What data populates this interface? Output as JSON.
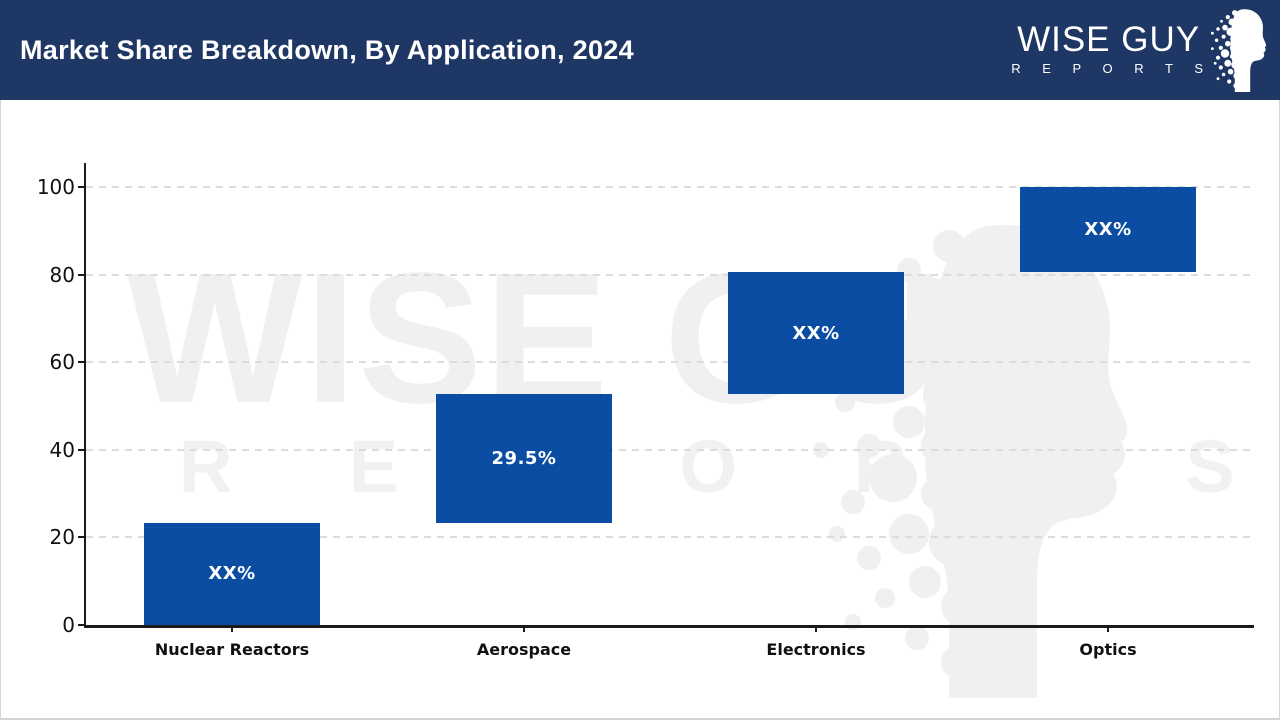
{
  "header": {
    "title": "Market Share Breakdown, By Application, 2024",
    "bg_color": "#1F3765",
    "logo": {
      "line1": "WISE GUY",
      "line2": "R E P O R T S"
    }
  },
  "watermark": {
    "line1": "WISE GUY",
    "line2": "R E P O R T S"
  },
  "chart_data": {
    "type": "bar",
    "subtype": "waterfall",
    "title": "Market Share Breakdown, By Application, 2024",
    "xlabel": "",
    "ylabel": "",
    "categories": [
      "Nuclear Reactors",
      "Aerospace",
      "Electronics",
      "Optics"
    ],
    "segments": [
      {
        "category": "Nuclear Reactors",
        "start": 0,
        "end": 23.3,
        "label": "XX%"
      },
      {
        "category": "Aerospace",
        "start": 23.3,
        "end": 52.8,
        "label": "29.5%"
      },
      {
        "category": "Electronics",
        "start": 52.8,
        "end": 80.5,
        "label": "XX%"
      },
      {
        "category": "Optics",
        "start": 80.5,
        "end": 100,
        "label": "XX%"
      }
    ],
    "yticks": [
      0,
      20,
      40,
      60,
      80,
      100
    ],
    "ylim": [
      0,
      105
    ],
    "grid": "horizontal-dashed",
    "legend": "none",
    "bar_color": "#0B4DA2",
    "bar_label_color": "#FFFFFF",
    "axis_color": "#1A1A1A",
    "gridline_color": "#DCDCDC",
    "watermark_color": "#F0F0F3"
  }
}
